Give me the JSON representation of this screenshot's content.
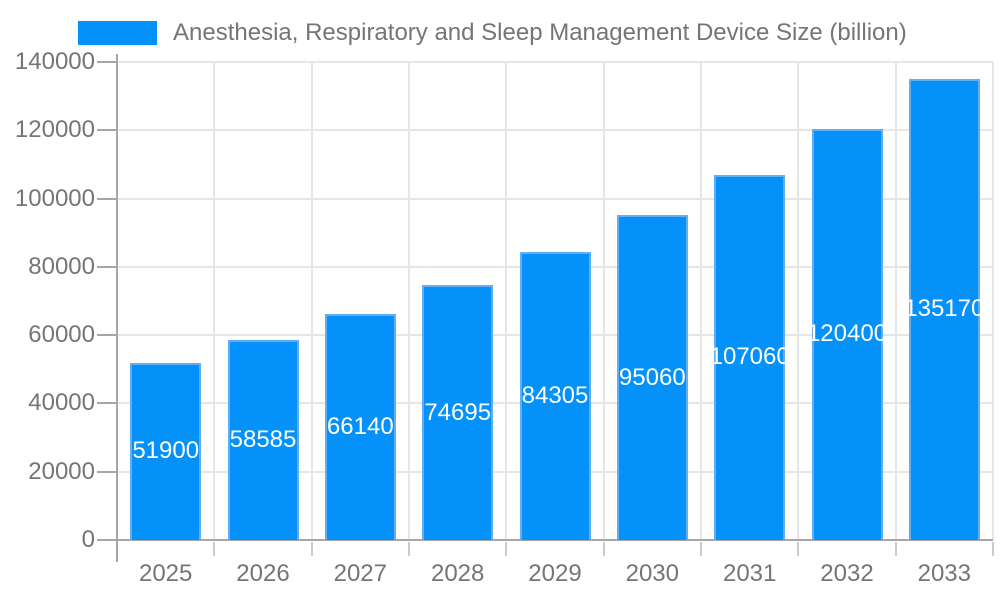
{
  "legend": {
    "label": "Anesthesia, Respiratory and Sleep Management Device Size (billion)"
  },
  "chart_data": {
    "type": "bar",
    "title": "",
    "xlabel": "",
    "ylabel": "",
    "categories": [
      "2025",
      "2026",
      "2027",
      "2028",
      "2029",
      "2030",
      "2031",
      "2032",
      "2033"
    ],
    "series": [
      {
        "name": "Anesthesia, Respiratory and Sleep Management Device Size (billion)",
        "color": "#0591fa",
        "values": [
          51900,
          58585,
          66140,
          74695,
          84305,
          95060,
          107060,
          120400,
          135170
        ]
      }
    ],
    "value_labels_shown": true,
    "value_label_color": "#ffffff",
    "ylim": [
      0,
      140000
    ],
    "ytick_step": 20000,
    "ytick_labels": [
      "0",
      "20000",
      "40000",
      "60000",
      "80000",
      "100000",
      "120000",
      "140000"
    ],
    "grid": true,
    "grid_color": "#e6e6e6",
    "axis_color": "#a6a6a6",
    "tick_color_x": "#cccccc",
    "label_color": "#757575",
    "bar_color": "#0591fa",
    "bar_edge_color": "#64adf2",
    "legend_position": "top"
  }
}
